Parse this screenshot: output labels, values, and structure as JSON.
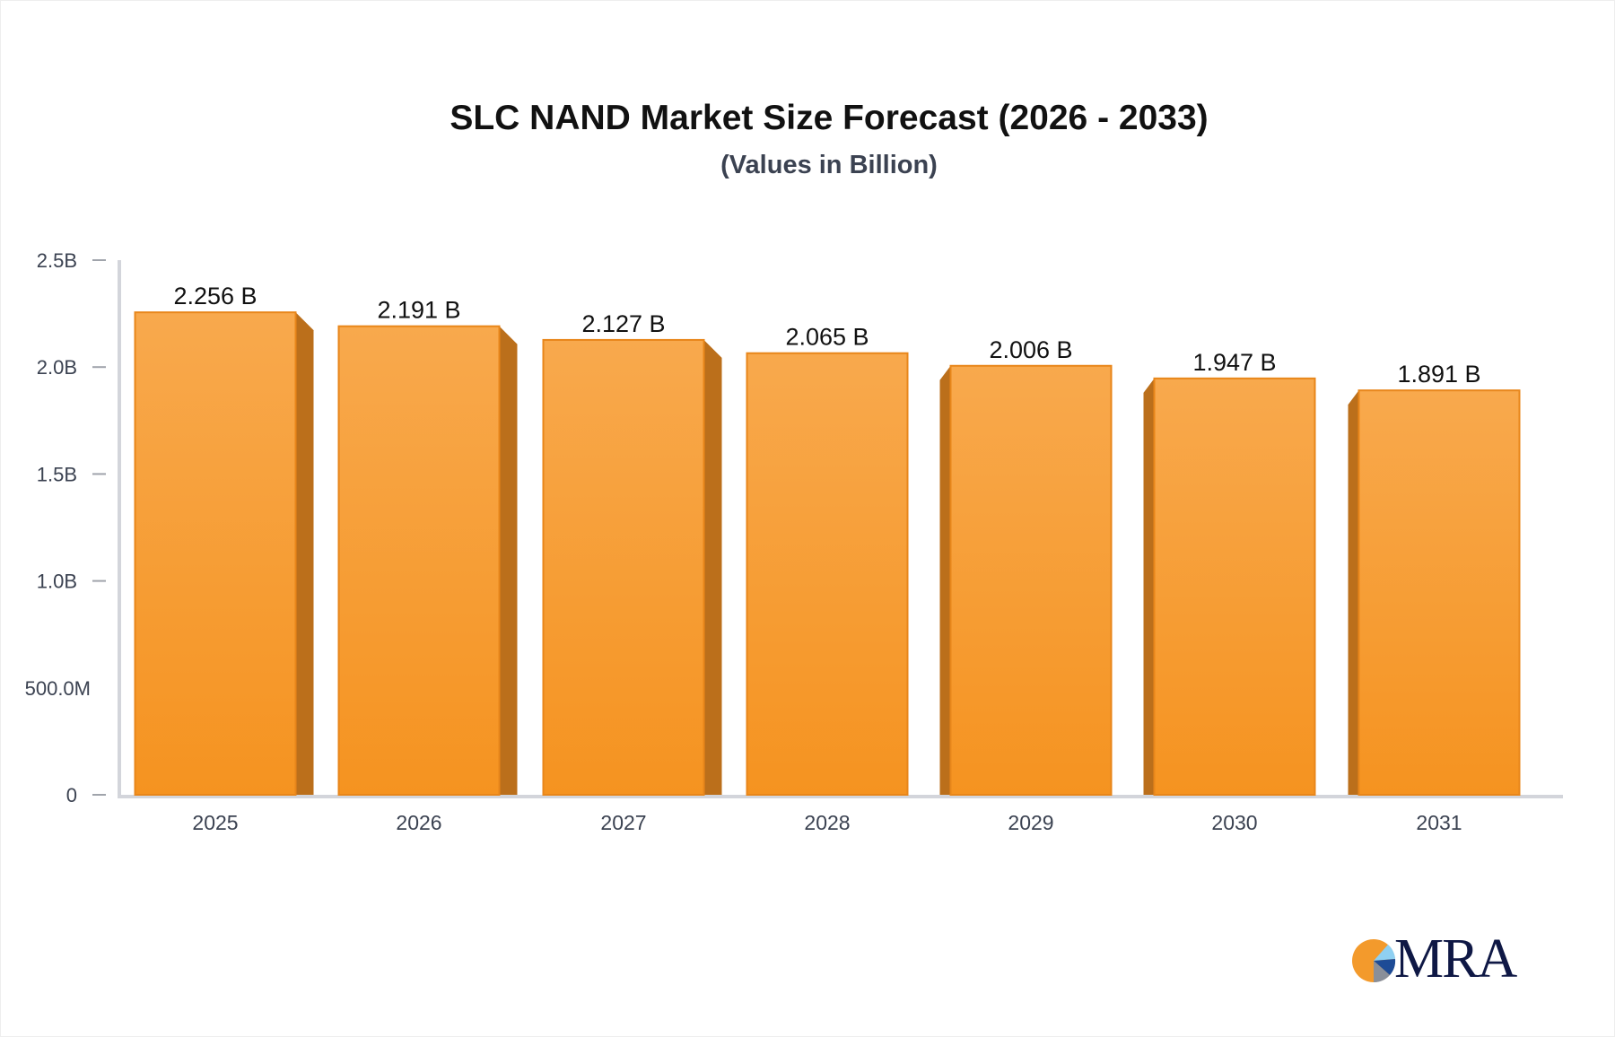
{
  "chart_data": {
    "type": "bar",
    "title": "SLC NAND Market Size Forecast (2026 - 2033)",
    "subtitle": "(Values in Billion)",
    "categories": [
      "2025",
      "2026",
      "2027",
      "2028",
      "2029",
      "2030",
      "2031"
    ],
    "values": [
      2.256,
      2.191,
      2.127,
      2.065,
      2.006,
      1.947,
      1.891
    ],
    "data_labels": [
      "2.256 B",
      "2.191 B",
      "2.127 B",
      "2.065 B",
      "2.006 B",
      "1.947 B",
      "1.891 B"
    ],
    "unit": "Billion",
    "ylim": [
      0,
      2.5
    ],
    "yticks": [
      0,
      0.5,
      1.0,
      1.5,
      2.0,
      2.5
    ],
    "ytick_labels": [
      "0",
      "500.0M",
      "1.0B",
      "1.5B",
      "2.0B",
      "2.5B"
    ],
    "xlabel": "",
    "ylabel": "",
    "grid": false,
    "bar_color": "#f7a03c",
    "bar_side_color": "#bb6f1b"
  },
  "logo": {
    "text": "MRA"
  }
}
